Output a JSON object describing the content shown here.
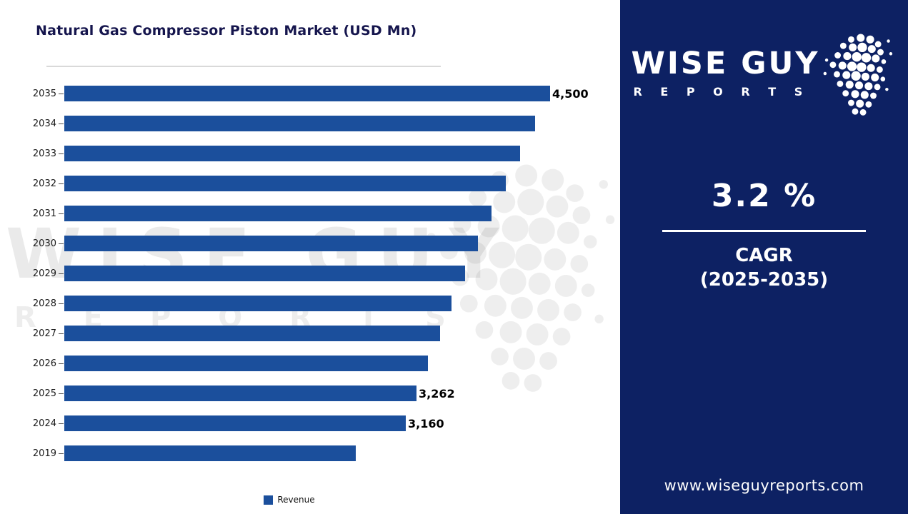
{
  "title": "Natural Gas Compressor Piston Market (USD Mn)",
  "legend": {
    "label": "Revenue"
  },
  "colors": {
    "bar": "#1b4f9c",
    "panel": "#0d2163"
  },
  "watermark": {
    "line1": "WISE GUY",
    "line2": "R E P O R T S"
  },
  "chart_data": {
    "type": "bar",
    "orientation": "horizontal",
    "title": "Natural Gas Compressor Piston Market (USD Mn)",
    "xlabel": "",
    "ylabel": "",
    "xlim": [
      0,
      4500
    ],
    "legend": [
      "Revenue"
    ],
    "categories": [
      "2035",
      "2034",
      "2033",
      "2032",
      "2031",
      "2030",
      "2029",
      "2028",
      "2027",
      "2026",
      "2025",
      "2024",
      "2019"
    ],
    "values": [
      4500,
      4360,
      4220,
      4090,
      3960,
      3830,
      3710,
      3590,
      3480,
      3370,
      3262,
      3160,
      2700
    ],
    "labeled_values": {
      "2035": "4,500",
      "2025": "3,262",
      "2024": "3,160"
    }
  },
  "sidebar": {
    "logo_line1": "WISE GUY",
    "logo_line2": "R E P O R T S",
    "cagr_value": "3.2 %",
    "cagr_label1": "CAGR",
    "cagr_label2": "(2025-2035)",
    "website": "www.wiseguyreports.com"
  }
}
